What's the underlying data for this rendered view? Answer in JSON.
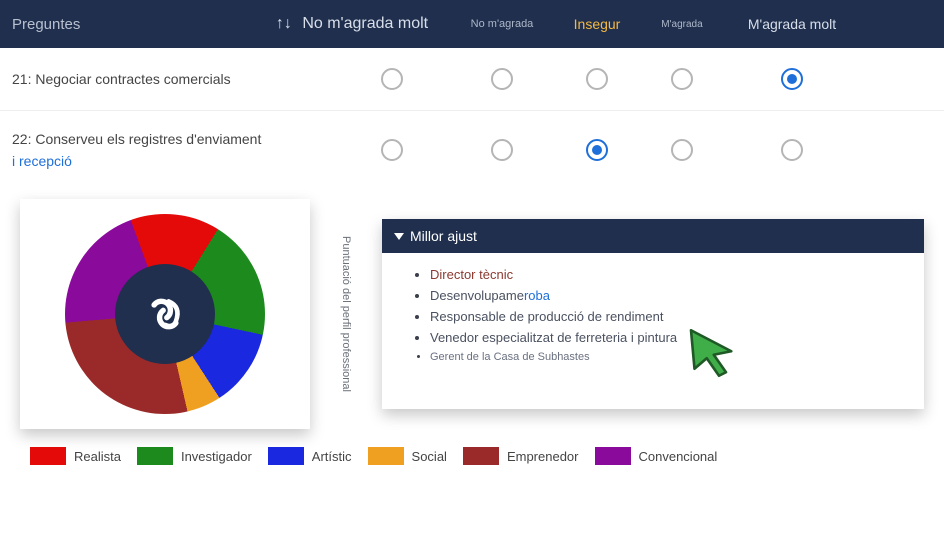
{
  "header": {
    "title": "Preguntes",
    "sort_glyph": "↑↓",
    "cols": [
      "No m'agrada molt",
      "No m'agrada",
      "Insegur",
      "M'agrada",
      "M'agrada molt"
    ]
  },
  "questions": [
    {
      "num": "21",
      "text": "Negociar contractes comercials",
      "sub": "",
      "selected": 4
    },
    {
      "num": "22",
      "text": "Conserveu els registres d'enviament",
      "sub": "i recepció",
      "selected": 2
    }
  ],
  "donut": {
    "slices": [
      {
        "name": "realista",
        "color": "#e40a0a",
        "angle": 52
      },
      {
        "name": "investigador",
        "color": "#1c8a1c",
        "angle": 70
      },
      {
        "name": "artistic",
        "color": "#1a28e0",
        "angle": 45
      },
      {
        "name": "social",
        "color": "#f0a020",
        "angle": 20
      },
      {
        "name": "emprenedor",
        "color": "#9a2a2a",
        "angle": 98
      },
      {
        "name": "convencional",
        "color": "#8a0a9c",
        "angle": 75
      }
    ],
    "center_bg": "#1f2f4d"
  },
  "vert_label": "Puntuació del perfil professional",
  "best_fit": {
    "title": "Millor ajust",
    "items": [
      {
        "text": "Director tècnic",
        "highlight": true
      },
      {
        "text_a": "Desenvolupame",
        "text_b": "roba"
      },
      {
        "text": "Responsable de producció de rendiment"
      },
      {
        "text": "Venedor especialitzat de ferreteria i pintura"
      },
      {
        "text": "Gerent de la Casa de Subhastes",
        "small": true
      }
    ]
  },
  "legend": [
    {
      "label": "Realista",
      "color": "#e40a0a"
    },
    {
      "label": "Investigador",
      "color": "#1c8a1c"
    },
    {
      "label": "Artístic",
      "color": "#1a28e0"
    },
    {
      "label": "Social",
      "color": "#f0a020"
    },
    {
      "label": "Emprenedor",
      "color": "#9a2a2a"
    },
    {
      "label": "Convencional",
      "color": "#8a0a9c"
    }
  ],
  "colors": {
    "header_bg": "#1f2f4d",
    "accent": "#1e6fd9"
  }
}
